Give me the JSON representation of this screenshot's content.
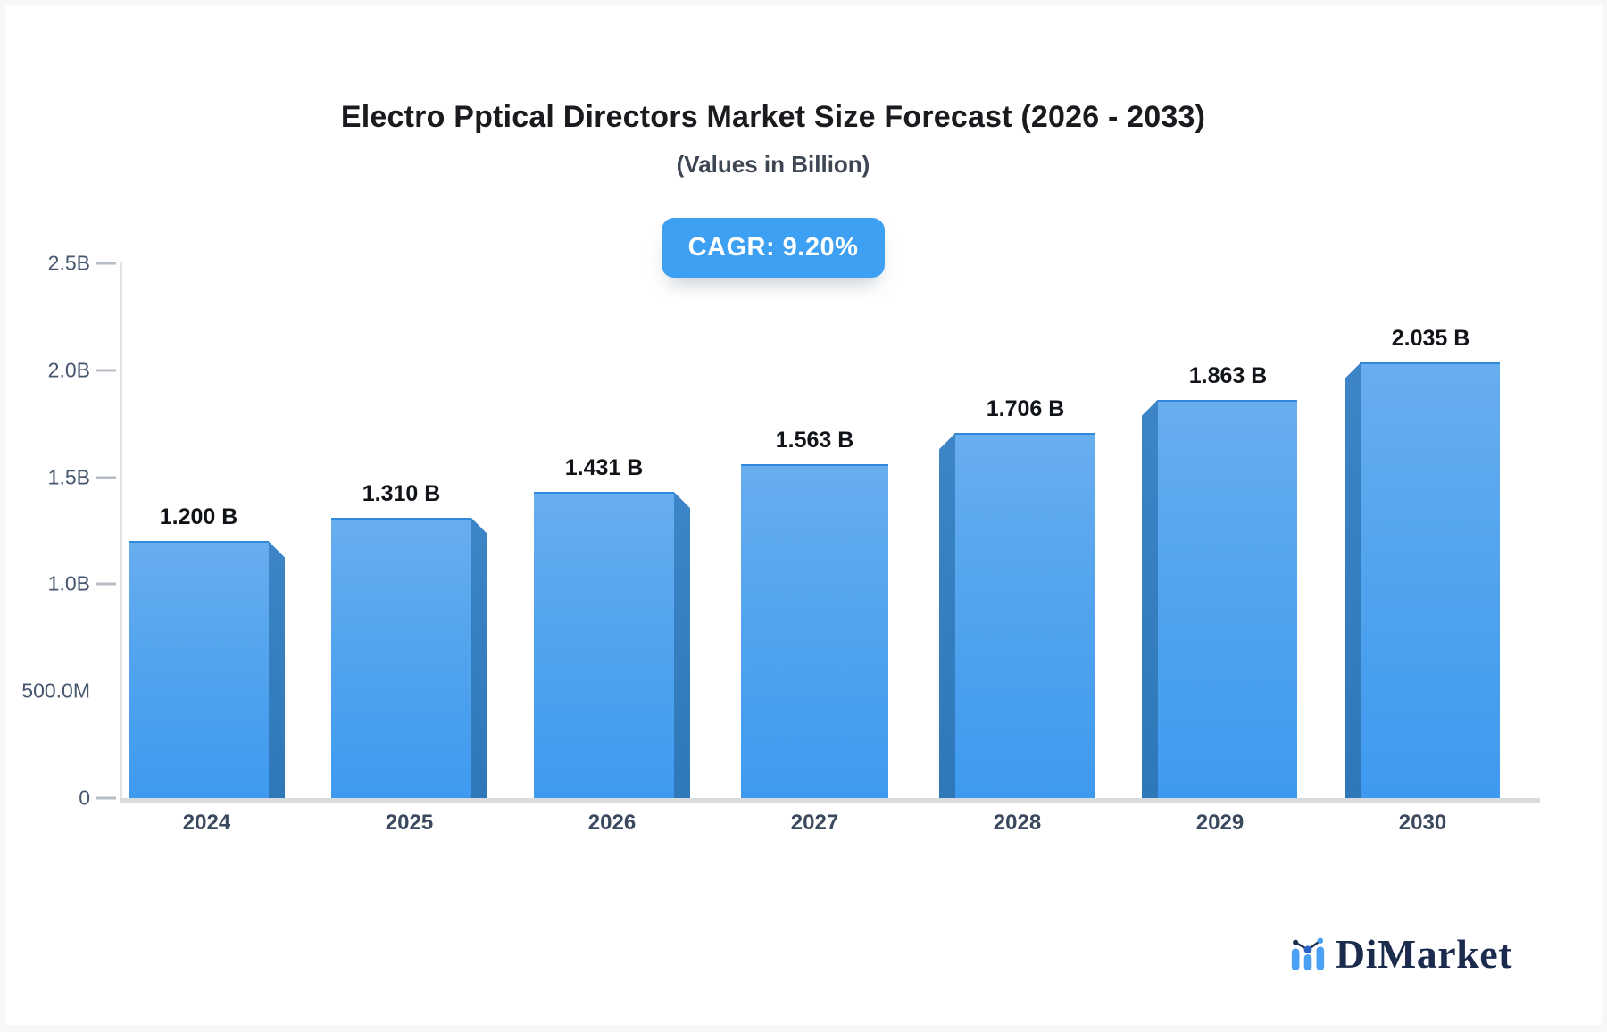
{
  "chart_data": {
    "type": "bar",
    "title": "Electro Pptical Directors Market Size Forecast (2026 - 2033)",
    "subtitle": "(Values in Billion)",
    "annotation_cagr": "CAGR: 9.20%",
    "categories": [
      "2024",
      "2025",
      "2026",
      "2027",
      "2028",
      "2029",
      "2030"
    ],
    "values": [
      1.2,
      1.31,
      1.431,
      1.563,
      1.706,
      1.863,
      2.035
    ],
    "value_labels": [
      "1.200 B",
      "1.310 B",
      "1.431 B",
      "1.563 B",
      "1.706 B",
      "1.863 B",
      "2.035 B"
    ],
    "xlabel": "",
    "ylabel": "",
    "ylim": [
      0,
      2.5
    ],
    "yticks": [
      {
        "label": "0",
        "value": 0,
        "tick_mark": true
      },
      {
        "label": "500.0M",
        "value": 0.5,
        "tick_mark": false
      },
      {
        "label": "1.0B",
        "value": 1.0,
        "tick_mark": true
      },
      {
        "label": "1.5B",
        "value": 1.5,
        "tick_mark": true
      },
      {
        "label": "2.0B",
        "value": 2.0,
        "tick_mark": true
      },
      {
        "label": "2.5B",
        "value": 2.5,
        "tick_mark": true
      }
    ],
    "grid": false,
    "legend": false,
    "bar_style": "3d-extruded-toward-center"
  },
  "brand": {
    "name": "DiMarket",
    "icon": "dimarket-bars-logo-icon"
  },
  "colors": {
    "accent": "#3da0f2",
    "badge_text": "#ffffff",
    "bar_face_top": "#68aeef",
    "bar_face_bottom": "#3e9af0",
    "bar_side": "#2e78ba",
    "axis_line": "#d9dcdf",
    "tick_label": "#45566e",
    "category_label": "#3a495d",
    "value_label": "#101317",
    "title": "#1b1b1f",
    "subtitle": "#3e4654",
    "background": "#f5f7f9",
    "card": "#ffffff",
    "logo_text": "#1b2b4d",
    "logo_blue": "#4aa0f2"
  }
}
